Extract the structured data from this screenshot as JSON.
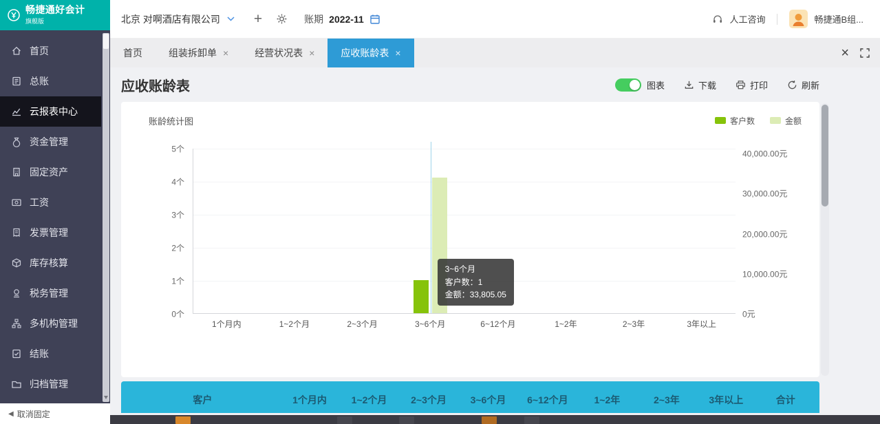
{
  "brand": {
    "name": "畅捷通好会计",
    "edition": "旗舰版"
  },
  "sidebar": {
    "items": [
      {
        "id": "home",
        "icon": "home-icon",
        "label": "首页",
        "active": false
      },
      {
        "id": "general-ledger",
        "icon": "ledger-icon",
        "label": "总账",
        "active": false
      },
      {
        "id": "cloud-reports",
        "icon": "report-icon",
        "label": "云报表中心",
        "active": true
      },
      {
        "id": "funds",
        "icon": "funds-icon",
        "label": "资金管理",
        "active": false
      },
      {
        "id": "fixed-assets",
        "icon": "assets-icon",
        "label": "固定资产",
        "active": false
      },
      {
        "id": "salary",
        "icon": "salary-icon",
        "label": "工资",
        "active": false
      },
      {
        "id": "invoice",
        "icon": "invoice-icon",
        "label": "发票管理",
        "active": false
      },
      {
        "id": "inventory",
        "icon": "inventory-icon",
        "label": "库存核算",
        "active": false
      },
      {
        "id": "tax",
        "icon": "tax-icon",
        "label": "税务管理",
        "active": false
      },
      {
        "id": "multi-org",
        "icon": "org-icon",
        "label": "多机构管理",
        "active": false
      },
      {
        "id": "closing",
        "icon": "closing-icon",
        "label": "结账",
        "active": false
      },
      {
        "id": "archive",
        "icon": "archive-icon",
        "label": "归档管理",
        "active": false
      }
    ],
    "unpin_label": "取消固定"
  },
  "topbar": {
    "company": "北京 对啊酒店有限公司",
    "period_label": "账期",
    "period_value": "2022-11",
    "consult_label": "人工咨询",
    "user_name": "畅捷通B组..."
  },
  "tabs": [
    {
      "id": "home",
      "label": "首页",
      "closable": false,
      "active": false
    },
    {
      "id": "assembly-order",
      "label": "组装拆卸单",
      "closable": true,
      "active": false
    },
    {
      "id": "operation-report",
      "label": "经营状况表",
      "closable": true,
      "active": false
    },
    {
      "id": "receivable-aging",
      "label": "应收账龄表",
      "closable": true,
      "active": true
    }
  ],
  "page": {
    "title": "应收账龄表",
    "chart_toggle_label": "图表",
    "download_label": "下载",
    "print_label": "打印",
    "refresh_label": "刷新"
  },
  "chart_data": {
    "type": "bar",
    "title": "账龄统计图",
    "categories": [
      "1个月内",
      "1~2个月",
      "2~3个月",
      "3~6个月",
      "6~12个月",
      "1~2年",
      "2~3年",
      "3年以上"
    ],
    "series": [
      {
        "name": "客户数",
        "axis": "left",
        "color": "#86c30a",
        "values": [
          0,
          0,
          0,
          1,
          0,
          0,
          0,
          0
        ]
      },
      {
        "name": "金额",
        "axis": "right",
        "color": "#dcecb5",
        "values": [
          0,
          0,
          0,
          33805.05,
          0,
          0,
          0,
          0
        ]
      }
    ],
    "left_axis": {
      "min": 0,
      "max": 5,
      "ticks": [
        "5个",
        "4个",
        "3个",
        "2个",
        "1个",
        "0个"
      ]
    },
    "right_axis": {
      "min": 0,
      "max": 40000,
      "ticks": [
        "40,000.00元",
        "30,000.00元",
        "20,000.00元",
        "10,000.00元",
        "0元"
      ]
    },
    "hover_index": 3,
    "tooltip": {
      "title": "3~6个月",
      "lines": [
        "客户数：1",
        "金额：33,805.05"
      ]
    },
    "legend": [
      "客户数",
      "金额"
    ],
    "legend_position": "top-right",
    "grid": true
  },
  "table": {
    "columns": [
      "客户",
      "1个月内",
      "1~2个月",
      "2~3个月",
      "3~6个月",
      "6~12个月",
      "1~2年",
      "2~3年",
      "3年以上",
      "合计"
    ]
  },
  "colors": {
    "brand_teal": "#00b2aa",
    "sidebar_bg": "#3f4156",
    "sidebar_active_bg": "#14141c",
    "active_tab_blue": "#2e9bd6",
    "toggle_green": "#45cd5f",
    "table_header_bg": "#2ab5da",
    "bar_primary": "#86c30a",
    "bar_secondary": "#dcecb5"
  },
  "taskbar": {
    "icon_colors": [
      "#d8872a",
      "#46464e",
      "#46464e",
      "#b06b22",
      "#46464e"
    ]
  }
}
